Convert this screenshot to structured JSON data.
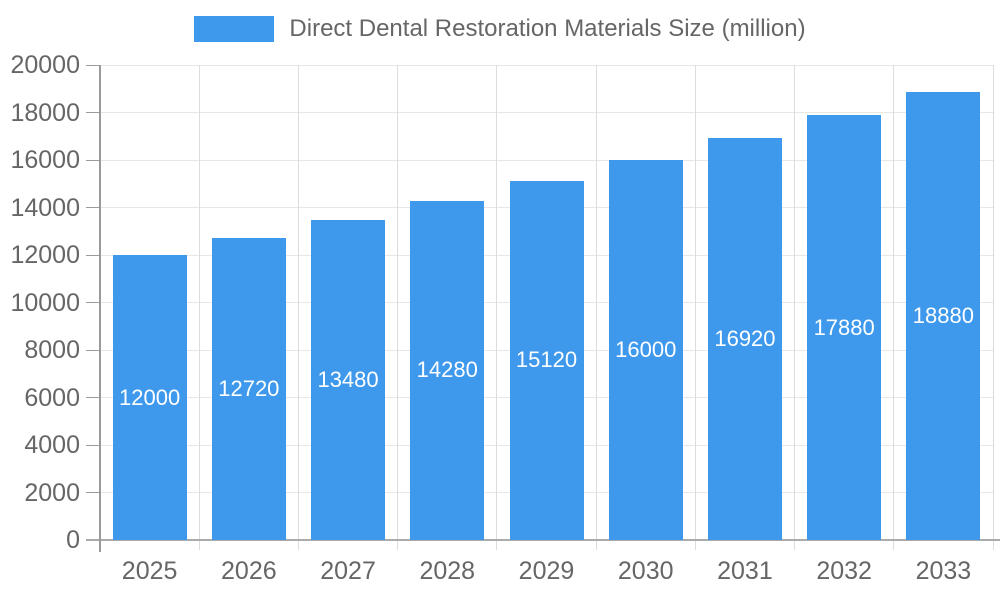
{
  "legend": {
    "label": "Direct Dental Restoration Materials Size (million)"
  },
  "chart_data": {
    "type": "bar",
    "title": "Direct Dental Restoration Materials Size (million)",
    "categories": [
      "2025",
      "2026",
      "2027",
      "2028",
      "2029",
      "2030",
      "2031",
      "2032",
      "2033"
    ],
    "values": [
      12000,
      12720,
      13480,
      14280,
      15120,
      16000,
      16920,
      17880,
      18880
    ],
    "xlabel": "",
    "ylabel": "",
    "ylim": [
      0,
      20000
    ],
    "yticks": [
      0,
      2000,
      4000,
      6000,
      8000,
      10000,
      12000,
      14000,
      16000,
      18000,
      20000
    ],
    "grid": true,
    "legend_position": "top-center",
    "bar_color": "#3E99ED",
    "hgrid_color": "#e7e7e7",
    "vgrid_color": "#dcdcdc",
    "axis_line_color": "#9a9a9a",
    "x_axis_line_color": "#ababab",
    "axis_label_color": "#666666",
    "value_label_color": "#ffffff"
  }
}
